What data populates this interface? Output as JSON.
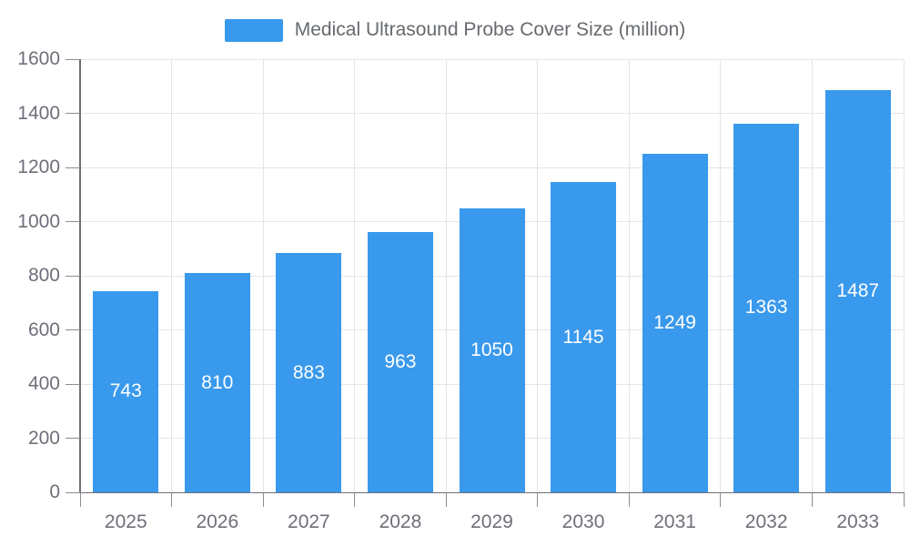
{
  "chart_data": {
    "type": "bar",
    "title": "Medical Ultrasound Probe Cover Size (million)",
    "legend": {
      "position": "top",
      "entries": [
        "Medical Ultrasound Probe Cover Size (million)"
      ]
    },
    "categories": [
      "2025",
      "2026",
      "2027",
      "2028",
      "2029",
      "2030",
      "2031",
      "2032",
      "2033"
    ],
    "series": [
      {
        "name": "Medical Ultrasound Probe Cover Size (million)",
        "values": [
          743,
          810,
          883,
          963,
          1050,
          1145,
          1249,
          1363,
          1487
        ]
      }
    ],
    "data_labels_shown": true,
    "xlabel": "",
    "ylabel": "",
    "ylim": [
      0,
      1600
    ],
    "ytick_step": 200,
    "yticks": [
      0,
      200,
      400,
      600,
      800,
      1000,
      1200,
      1400,
      1600
    ],
    "grid": "horizontal and vertical category boundaries",
    "colors": {
      "bar": "#3999ec",
      "bar_label_text": "#ffffff",
      "axis_text": "#6e7079",
      "axis_line": "#6e7079",
      "grid_line": "#e3e5e9",
      "legend_text": "#666a6e",
      "background": "#ffffff"
    }
  }
}
